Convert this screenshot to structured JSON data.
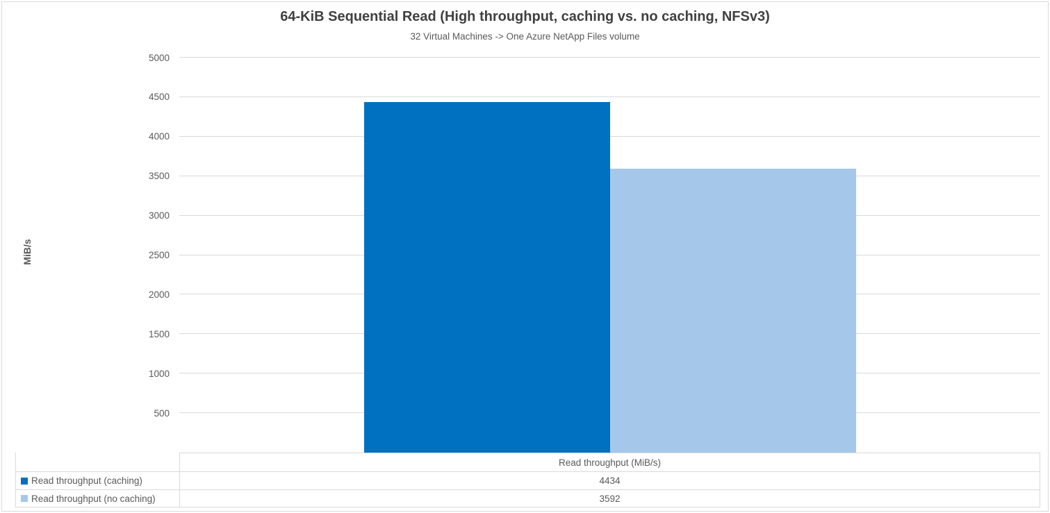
{
  "chart_data": {
    "type": "bar",
    "title": "64-KiB Sequential Read (High throughput, caching vs. no caching, NFSv3)",
    "subtitle": "32 Virtual Machines -> One Azure NetApp Files volume",
    "ylabel": "MiB/s",
    "xlabel": "",
    "ylim": [
      0,
      5000
    ],
    "yticks": [
      500,
      1000,
      1500,
      2000,
      2500,
      3000,
      3500,
      4000,
      4500,
      5000
    ],
    "grid": true,
    "legend_position": "data-table-bottom-left",
    "categories": [
      "Read throughput (MiB/s)"
    ],
    "series": [
      {
        "name": "Read throughput (caching)",
        "values": [
          4434
        ],
        "color": "#0071c1"
      },
      {
        "name": "Read throughput (no caching)",
        "values": [
          3592
        ],
        "color": "#a5c8ea"
      }
    ],
    "colors": {
      "gridline": "#d9d9d9",
      "border": "#d9d9d9",
      "title_text": "#404040",
      "axis_text": "#595959"
    }
  }
}
